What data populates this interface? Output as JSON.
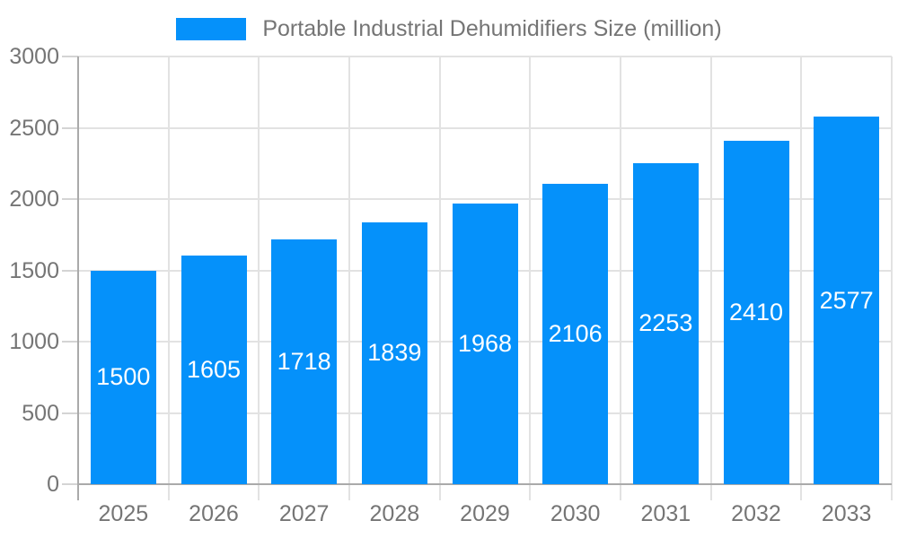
{
  "chart_data": {
    "type": "bar",
    "title": "Portable Industrial Dehumidifiers Size (million)",
    "categories": [
      "2025",
      "2026",
      "2027",
      "2028",
      "2029",
      "2030",
      "2031",
      "2032",
      "2033"
    ],
    "series": [
      {
        "name": "Portable Industrial Dehumidifiers Size (million)",
        "values": [
          1500,
          1605,
          1718,
          1839,
          1968,
          2106,
          2253,
          2410,
          2577
        ]
      }
    ],
    "xlabel": "",
    "ylabel": "",
    "ylim": [
      0,
      3000
    ],
    "yticks": [
      0,
      500,
      1000,
      1500,
      2000,
      2500,
      3000
    ],
    "grid": true,
    "legend_position": "top-center",
    "value_label_position": "inside-center",
    "colors": {
      "bar": "#0591fa",
      "value_label": "#ffffff",
      "axis_label": "#757575",
      "legend_text": "#757575",
      "grid_line": "#e2e2e2",
      "tick_line": "#d4d4d4",
      "axis_line": "#aaaaaa",
      "background": "#ffffff"
    }
  }
}
